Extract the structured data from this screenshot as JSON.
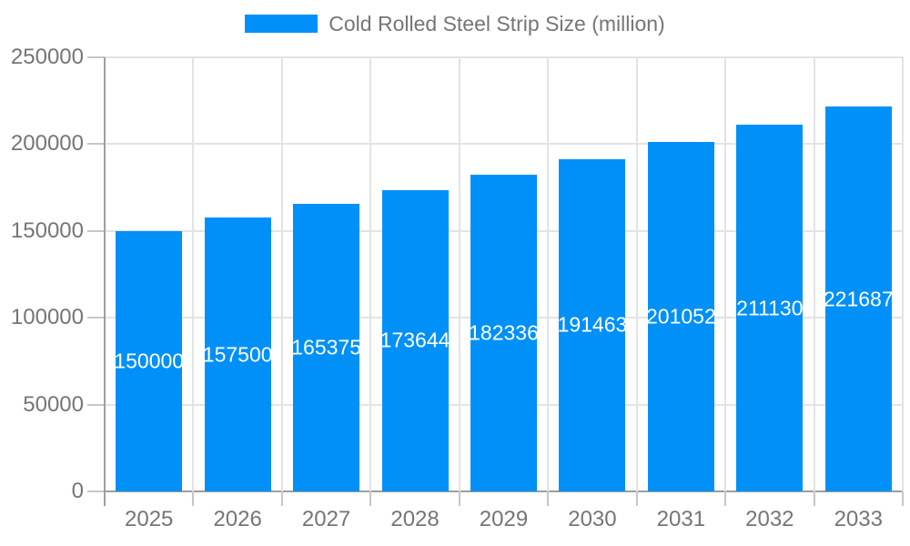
{
  "legend": {
    "label": "Cold Rolled Steel Strip Size (million)"
  },
  "chart_data": {
    "type": "bar",
    "title": "Cold Rolled Steel Strip Size (million)",
    "categories": [
      "2025",
      "2026",
      "2027",
      "2028",
      "2029",
      "2030",
      "2031",
      "2032",
      "2033"
    ],
    "values": [
      150000,
      157500,
      165375,
      173644,
      182336,
      191463,
      201052,
      211130,
      221687
    ],
    "bar_labels": [
      "150000",
      "157500",
      "165375",
      "173644",
      "182336",
      "191463",
      "201052",
      "211130",
      "221687"
    ],
    "y_ticks": [
      0,
      50000,
      100000,
      150000,
      200000,
      250000
    ],
    "y_tick_labels": [
      "0",
      "50000",
      "100000",
      "150000",
      "200000",
      "250000"
    ],
    "xlabel": "",
    "ylabel": "",
    "ylim": [
      0,
      250000
    ],
    "grid": true,
    "legend_position": "top",
    "bar_color": "#0090f8",
    "bar_label_color": "#ffffff",
    "axis_text_color": "#757575",
    "axis_line_color": "#9e9e9e",
    "grid_color": "#e3e3e3",
    "tick_color": "#c6c6c6",
    "background_color": "#ffffff"
  }
}
